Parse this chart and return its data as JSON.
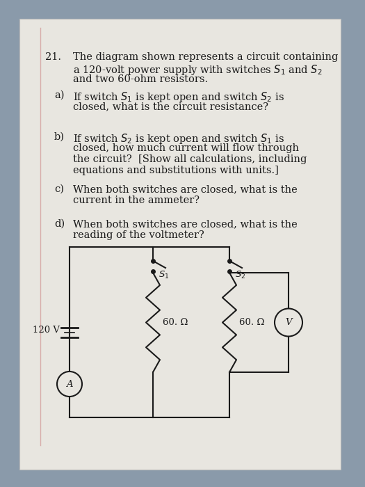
{
  "bg_outer": "#8a9aaa",
  "bg_paper": "#e8e6e0",
  "line_color": "#1a1a1a",
  "text_color": "#1a1a1a",
  "border_line": "#999999",
  "q_num": "21.",
  "q_text_line1": "The diagram shown represents a circuit containing",
  "q_text_line2": "a 120-volt power supply with switches $S_1$ and $S_2$",
  "q_text_line3": "and two 60-ohm resistors.",
  "parts": [
    {
      "label": "a)",
      "lines": [
        "If switch $S_1$ is kept open and switch $S_2$ is",
        "closed, what is the circuit resistance?"
      ]
    },
    {
      "label": "b)",
      "lines": [
        "If switch $S_2$ is kept open and switch $S_1$ is",
        "closed, how much current will flow through",
        "the circuit?  [Show all calculations, including",
        "equations and substitutions with units.]"
      ]
    },
    {
      "label": "c)",
      "lines": [
        "When both switches are closed, what is the",
        "current in the ammeter?"
      ]
    },
    {
      "label": "d)",
      "lines": [
        "When both switches are closed, what is the",
        "reading of the voltmeter?"
      ]
    }
  ],
  "voltage_label": "120 V",
  "R1_label": "60. Ω",
  "R2_label": "60. Ω",
  "S1_label": "S_1",
  "S2_label": "S_2",
  "A_label": "A",
  "V_label": "V",
  "font_size_main": 10.5,
  "font_size_circuit": 9.5
}
